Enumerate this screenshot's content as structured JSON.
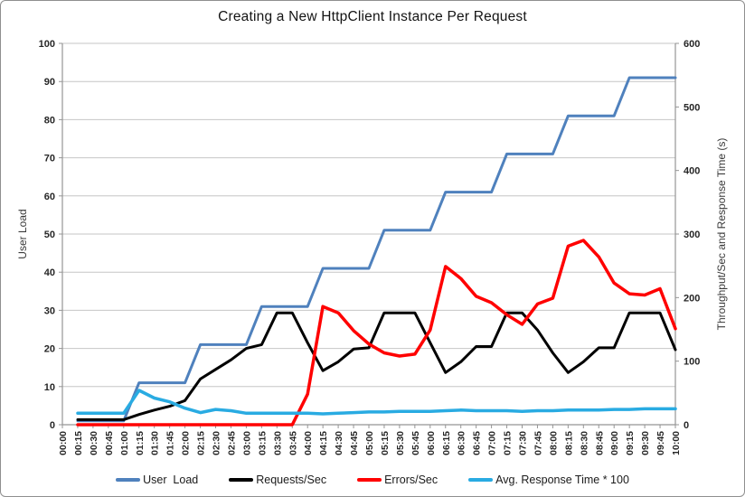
{
  "chart_data": {
    "type": "line",
    "title": "Creating a New HttpClient Instance Per Request",
    "grid": "horizontal",
    "legend_position": "bottom",
    "x_tick_labels": [
      "00:00",
      "00:15",
      "00:30",
      "00:45",
      "01:00",
      "01:15",
      "01:30",
      "01:45",
      "02:00",
      "02:15",
      "02:30",
      "02:45",
      "03:00",
      "03:15",
      "03:30",
      "03:45",
      "04:00",
      "04:15",
      "04:30",
      "04:45",
      "05:00",
      "05:15",
      "05:30",
      "05:45",
      "06:00",
      "06:15",
      "06:30",
      "06:45",
      "07:00",
      "07:15",
      "07:30",
      "07:45",
      "08:00",
      "08:15",
      "08:30",
      "08:45",
      "09:00",
      "09:15",
      "09:30",
      "09:45",
      "10:00"
    ],
    "series_x_start": "00:15",
    "y_left": {
      "label": "User Load",
      "min": 0,
      "max": 100,
      "step": 10
    },
    "y_right": {
      "label": "Throughput/Sec and Response Time (s)",
      "min": 0,
      "max": 600,
      "step": 100
    },
    "series": [
      {
        "name": "User  Load",
        "axis": "left",
        "color": "#4F81BD",
        "width": 3,
        "values": [
          1,
          1,
          1,
          1,
          11,
          11,
          11,
          11,
          21,
          21,
          21,
          21,
          31,
          31,
          31,
          31,
          41,
          41,
          41,
          41,
          51,
          51,
          51,
          51,
          61,
          61,
          61,
          61,
          71,
          71,
          71,
          71,
          81,
          81,
          81,
          81,
          91,
          91,
          91,
          91
        ]
      },
      {
        "name": "Requests/Sec",
        "axis": "right",
        "color": "#000000",
        "width": 3,
        "values": [
          8,
          8,
          8,
          8,
          16,
          23,
          29,
          38,
          72,
          87,
          102,
          120,
          126,
          176,
          176,
          129,
          85,
          99,
          119,
          121,
          176,
          176,
          176,
          129,
          82,
          99,
          123,
          123,
          176,
          176,
          149,
          113,
          82,
          99,
          121,
          121,
          176,
          176,
          176,
          118
        ]
      },
      {
        "name": "Errors/Sec",
        "axis": "right",
        "color": "#FF0000",
        "width": 3.5,
        "values": [
          0,
          0,
          0,
          0,
          0,
          0,
          0,
          0,
          0,
          0,
          0,
          0,
          0,
          0,
          0,
          48,
          186,
          176,
          148,
          127,
          113,
          108,
          111,
          149,
          249,
          230,
          202,
          192,
          173,
          158,
          190,
          199,
          281,
          290,
          264,
          223,
          206,
          204,
          214,
          151
        ]
      },
      {
        "name": "Avg. Response Time * 100",
        "axis": "right",
        "color": "#29ABE2",
        "width": 3.5,
        "values": [
          18,
          18,
          18,
          18,
          54,
          42,
          36,
          26,
          19,
          24,
          22,
          18,
          18,
          18,
          18,
          18,
          17,
          18,
          19,
          20,
          20,
          21,
          21,
          21,
          22,
          23,
          22,
          22,
          22,
          21,
          22,
          22,
          23,
          23,
          23,
          24,
          24,
          25,
          25,
          25
        ]
      }
    ],
    "colors": {
      "gridline": "#c6c6c6",
      "axis_line": "#959595",
      "tick_text": "#262626"
    }
  }
}
